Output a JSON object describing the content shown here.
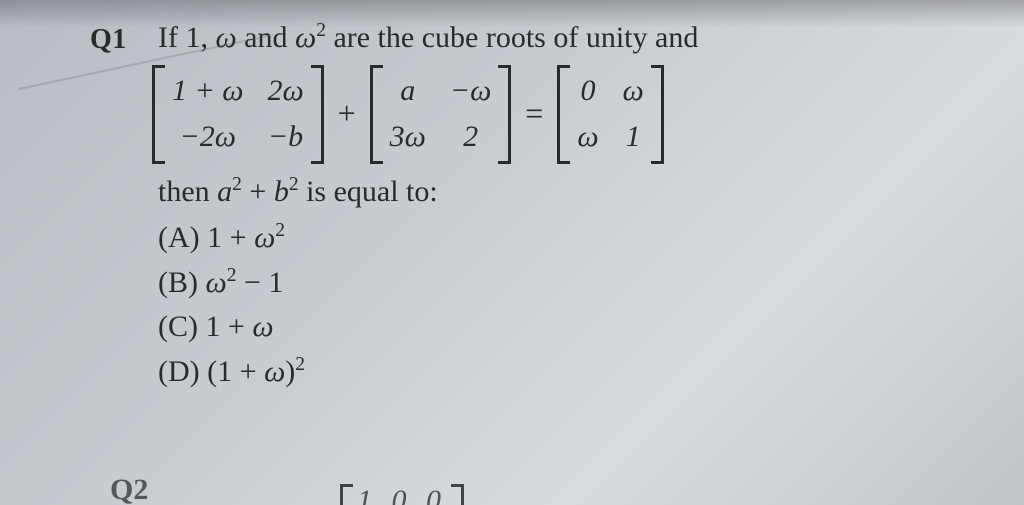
{
  "colors": {
    "text": "#2a2a2a",
    "bg_gradient_from": "#b8bdc3",
    "bg_gradient_to": "#d9dcdf"
  },
  "question": {
    "label": "Q1",
    "intro_html": "If 1, <span class='math-i'>ω</span> and <span class='math-i'>ω</span><sup>2</sup> are the cube roots of unity and",
    "matrix_A": [
      [
        "1 + ω",
        "2ω"
      ],
      [
        "−2ω",
        "−b"
      ]
    ],
    "matrix_B": [
      [
        "a",
        "−ω"
      ],
      [
        "3ω",
        "2"
      ]
    ],
    "matrix_C": [
      [
        "0",
        "ω"
      ],
      [
        "ω",
        "1"
      ]
    ],
    "operator_plus": "+",
    "operator_eq": "=",
    "then_html": "then <span class='math-i'>a</span><sup>2</sup> + <span class='math-i'>b</span><sup>2</sup> is equal to:",
    "options": [
      {
        "label": "(A)",
        "expr_html": "1 + <span class='math-i'>ω</span><sup>2</sup>"
      },
      {
        "label": "(B)",
        "expr_html": "<span class='math-i'>ω</span><sup>2</sup> − 1"
      },
      {
        "label": "(C)",
        "expr_html": "1 + <span class='math-i'>ω</span>"
      },
      {
        "label": "(D)",
        "expr_html": "(1 + <span class='math-i'>ω</span>)<sup>2</sup>"
      }
    ]
  },
  "partial_next": "Q2",
  "partial_matrix_row": "1   0   0"
}
